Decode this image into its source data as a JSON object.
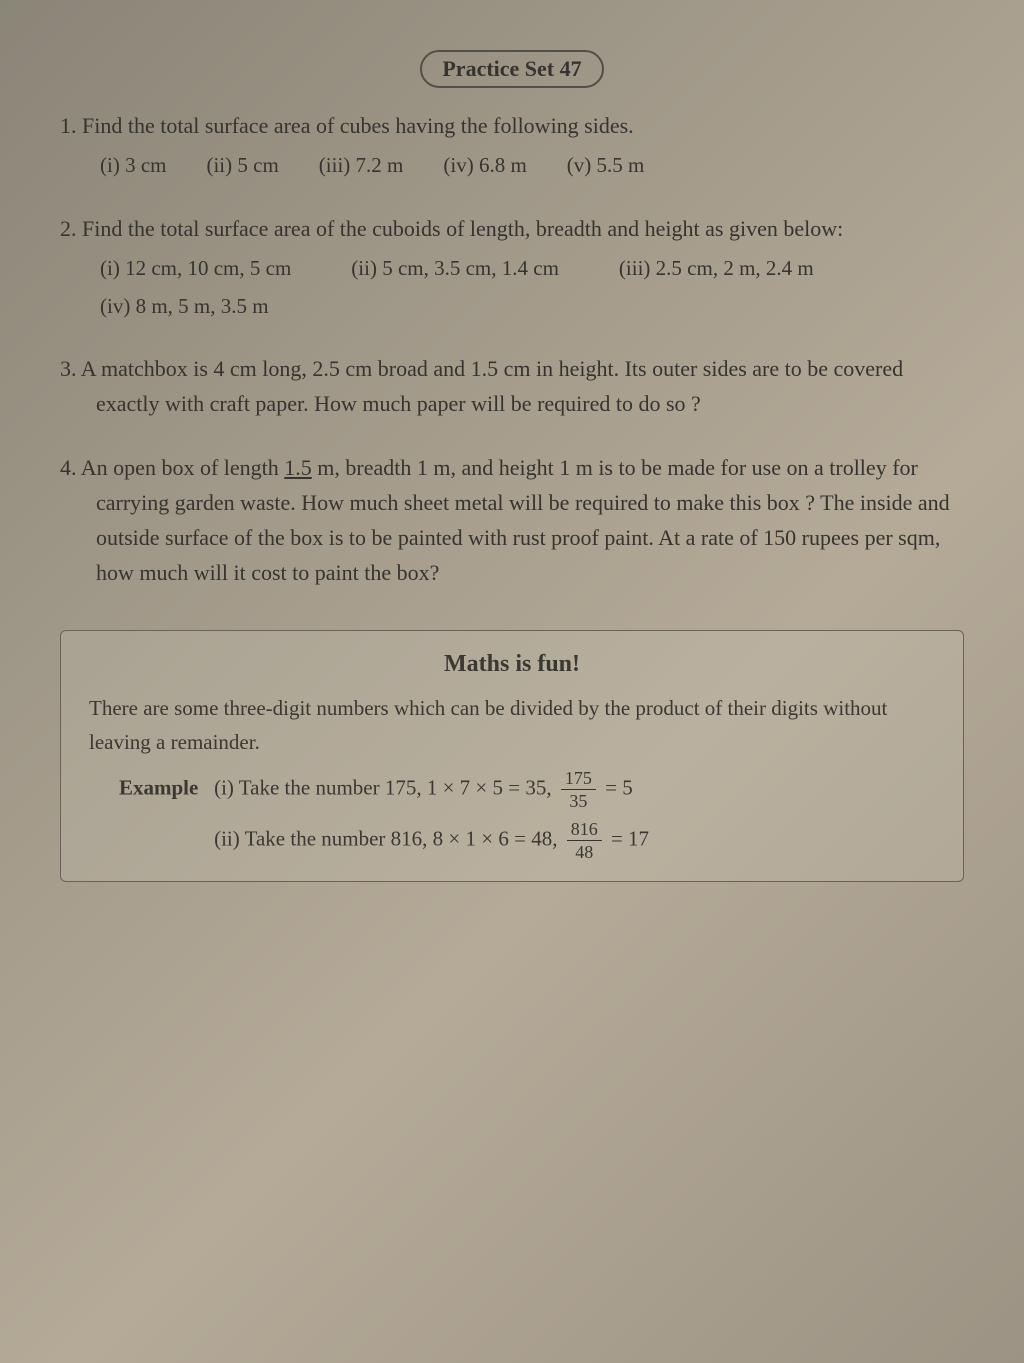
{
  "header": {
    "practice_set": "Practice Set 47"
  },
  "q1": {
    "text": "1. Find the total surface area of cubes having the following sides.",
    "opts": {
      "i": "(i) 3 cm",
      "ii": "(ii) 5 cm",
      "iii": "(iii) 7.2 m",
      "iv": "(iv) 6.8 m",
      "v": "(v) 5.5 m"
    }
  },
  "q2": {
    "text": "2. Find the total surface area of the cuboids of length, breadth and height as given below:",
    "opts": {
      "i": "(i) 12 cm, 10 cm, 5 cm",
      "ii": "(ii) 5 cm, 3.5 cm, 1.4 cm",
      "iii": "(iii) 2.5 cm, 2 m, 2.4 m",
      "iv": "(iv) 8 m, 5 m, 3.5 m"
    }
  },
  "q3": {
    "text": "3. A matchbox is 4 cm long, 2.5 cm broad and 1.5 cm in height. Its outer sides are to be covered exactly with craft paper. How much paper will be required to do so ?"
  },
  "q4": {
    "text_a": "4. An open box of length ",
    "text_u": "1.5",
    "text_b": " m, breadth 1 m, and height 1 m is to be made for use on a trolley for carrying garden waste. How much sheet metal will be required to make this box ? The inside and outside surface of the box is to be painted with rust proof paint. At a rate of 150 rupees per sqm, how much will it cost to paint the box?"
  },
  "fun": {
    "title": "Maths is fun!",
    "body": "There are some three-digit numbers which can be divided by the product of their digits without leaving a remainder.",
    "example_label": "Example",
    "ex1_a": "(i) Take the number 175, 1 × 7 × 5 = 35, ",
    "ex1_frac_num": "175",
    "ex1_frac_den": "35",
    "ex1_b": " = 5",
    "ex2_a": "(ii) Take the number 816, 8 × 1 × 6 = 48, ",
    "ex2_frac_num": "816",
    "ex2_frac_den": "48",
    "ex2_b": " = 17"
  }
}
